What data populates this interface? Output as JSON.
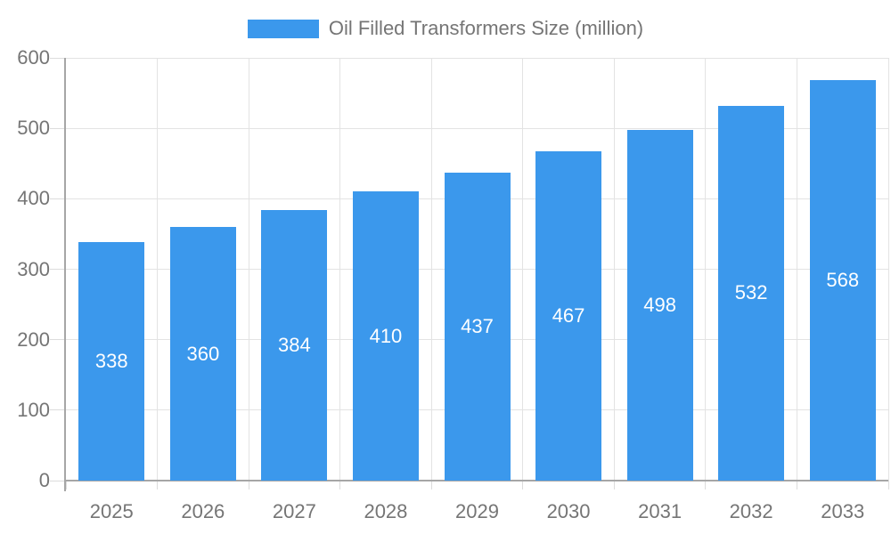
{
  "legend": {
    "label": "Oil Filled Transformers Size (million)"
  },
  "chart_data": {
    "type": "bar",
    "title": "Oil Filled Transformers Size (million)",
    "categories": [
      "2025",
      "2026",
      "2027",
      "2028",
      "2029",
      "2030",
      "2031",
      "2032",
      "2033"
    ],
    "values": [
      338,
      360,
      384,
      410,
      437,
      467,
      498,
      532,
      568
    ],
    "xlabel": "",
    "ylabel": "",
    "ylim": [
      0,
      600
    ],
    "ytick_step": 100,
    "ytick_labels": [
      "0",
      "100",
      "200",
      "300",
      "400",
      "500",
      "600"
    ],
    "grid": true,
    "legend_position": "top-center",
    "bar_labels_inside": true,
    "colors": {
      "bar": "#3B98EC",
      "bar_label": "#FFFFFF",
      "grid": "#E3E3E3",
      "tick": "#DCDCDC",
      "axis": "#A6A6A6",
      "text": "#757575",
      "background": "#FFFFFF"
    }
  }
}
